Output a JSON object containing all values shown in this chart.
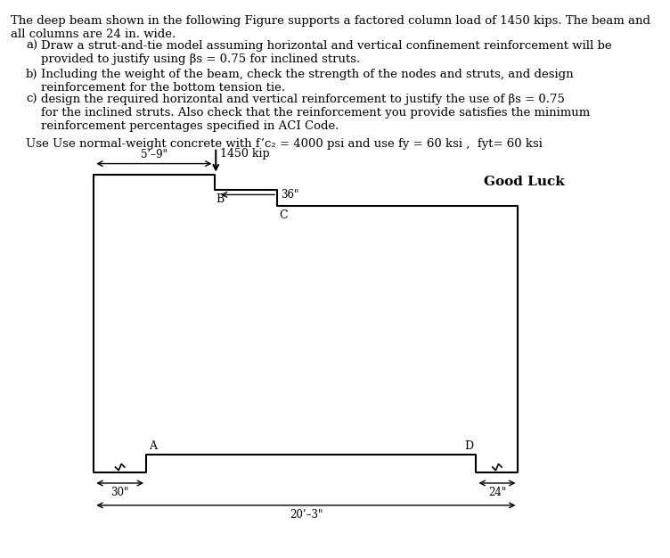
{
  "title_text": "The deep beam shown in the following Figure supports a factored column load of 1450 kips. The beam and\nall columns are 24 in. wide.",
  "item_a": "Draw a strut-and-tie model assuming horizontal and vertical confinement reinforcement will be\nprovided to justify using βs = 0.75 for inclined struts.",
  "item_b": "Including the weight of the beam, check the strength of the nodes and struts, and design\nreinforcement for the bottom tension tie.",
  "item_c": "design the required horizontal and vertical reinforcement to justify the use of βs = 0.75\nfor the inclined struts. Also check that the reinforcement you provide satisfies the minimum\nreinforcement percentages specified in ACI Code.",
  "use_text": "Use Use normal-weight concrete with f’c₂ = 4000 psi and use fy = 60 ksi ,  fyt= 60 ksi",
  "good_luck": "Good Luck",
  "load_label": "1450 kip",
  "dim_5_9": "5’–9\"",
  "dim_36": "36\"",
  "dim_B": "B",
  "dim_C": "C",
  "dim_A": "A",
  "dim_D": "D",
  "dim_30": "30\"",
  "dim_24": "24\"",
  "dim_20_3": "20’–3\"",
  "bg_color": "#ffffff",
  "line_color": "#000000",
  "text_color": "#000000"
}
